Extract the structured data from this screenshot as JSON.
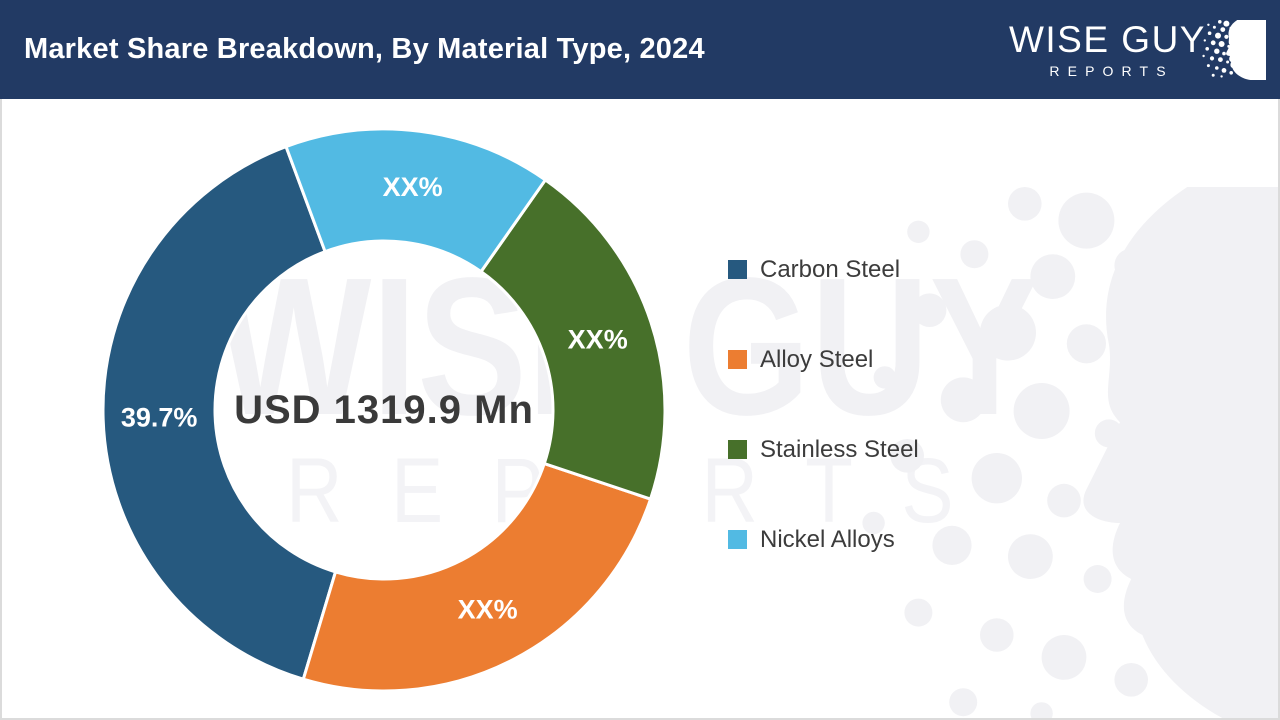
{
  "header": {
    "title": "Market Share Breakdown, By Material Type, 2024",
    "background_color": "#223A64",
    "logo": {
      "line1": "WISE GUY",
      "line2": "REPORTS"
    }
  },
  "watermark": {
    "line1": "WISE GUY",
    "line2": "REPORTS"
  },
  "chart_data": {
    "type": "pie",
    "subtype": "donut",
    "title": "Market Share Breakdown, By Material Type, 2024",
    "center_label": "USD 1319.9 Mn",
    "unit": "percent share",
    "segments": [
      {
        "label": "Carbon Steel",
        "value": 39.7,
        "display_value": "39.7%",
        "color": "#26597F"
      },
      {
        "label": "Alloy Steel",
        "value": 24.5,
        "display_value": "XX%",
        "color": "#EC7D31"
      },
      {
        "label": "Stainless Steel",
        "value": 20.4,
        "display_value": "XX%",
        "color": "#47702A"
      },
      {
        "label": "Nickel Alloys",
        "value": 15.4,
        "display_value": "XX%",
        "color": "#52BAE3"
      }
    ],
    "layout": {
      "start_angle_deg": -20.4,
      "direction": "counterclockwise",
      "inner_radius_ratio": 0.6,
      "legend_position": "right",
      "slice_label_color": "#ffffff",
      "slice_gap_color": "#ffffff"
    }
  }
}
